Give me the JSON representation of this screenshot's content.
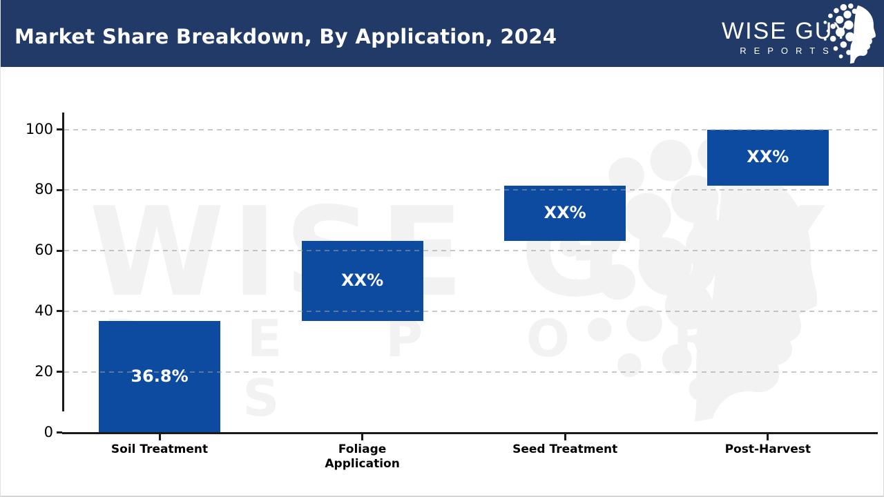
{
  "header": {
    "title": "Market Share Breakdown, By Application, 2024",
    "logo": {
      "line1": "WISE GUY",
      "line2": "REPORTS"
    }
  },
  "watermark": {
    "line1": "WISE GUY",
    "line2": "REPORTS"
  },
  "colors": {
    "header_bg": "#213A67",
    "bar_blue": "#0C4BA0",
    "axis_black": "#1a1a1a",
    "grid_gray": "#c9c9c9",
    "watermark_gray": "#f2f2f2",
    "label_white": "#ffffff"
  },
  "chart_data": {
    "type": "bar",
    "subtype": "floating-waterfall",
    "title": "Market Share Breakdown, By Application, 2024",
    "categories": [
      "Soil Treatment",
      "Foliage\nApplication",
      "Seed Treatment",
      "Post-Harvest"
    ],
    "bars": [
      {
        "category": "Soil Treatment",
        "start": 0,
        "end": 36.8,
        "label": "36.8%"
      },
      {
        "category": "Foliage\nApplication",
        "start": 36.8,
        "end": 63.2,
        "label": "XX%"
      },
      {
        "category": "Seed Treatment",
        "start": 63.2,
        "end": 81.4,
        "label": "XX%"
      },
      {
        "category": "Post-Harvest",
        "start": 81.4,
        "end": 100.0,
        "label": "XX%"
      }
    ],
    "xlabel": "",
    "ylabel": "",
    "ylim": [
      0,
      100
    ],
    "yticks": [
      0,
      20,
      40,
      60,
      80,
      100
    ],
    "grid": "horizontal-dashed",
    "legend": "none",
    "unit": "%"
  }
}
